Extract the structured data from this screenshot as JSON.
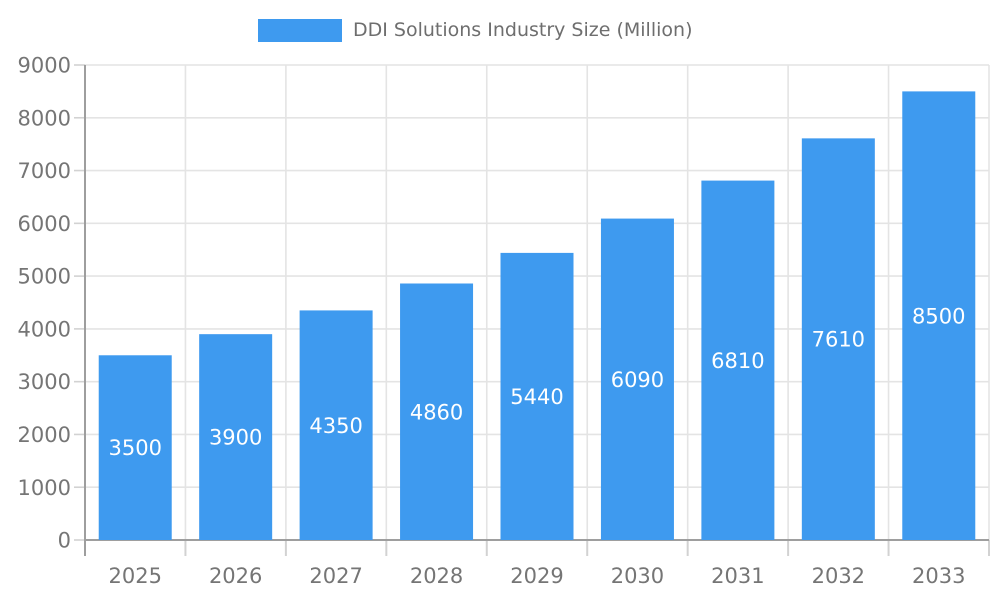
{
  "chart_data": {
    "type": "bar",
    "title": "DDI Solutions Industry Size (Million)",
    "legend": {
      "label": "DDI Solutions Industry Size (Million)",
      "position": "top"
    },
    "categories": [
      "2025",
      "2026",
      "2027",
      "2028",
      "2029",
      "2030",
      "2031",
      "2032",
      "2033"
    ],
    "series": [
      {
        "name": "DDI Solutions Industry Size (Million)",
        "values": [
          3500,
          3900,
          4350,
          4860,
          5440,
          6090,
          6810,
          7610,
          8500
        ]
      }
    ],
    "bar_labels": [
      "3500",
      "3900",
      "4350",
      "4860",
      "5440",
      "6090",
      "6810",
      "7610",
      "8500"
    ],
    "xlabel": "",
    "ylabel": "",
    "ylim": [
      0,
      9000
    ],
    "ytick_step": 1000,
    "ytick_labels": [
      "0",
      "1000",
      "2000",
      "3000",
      "4000",
      "5000",
      "6000",
      "7000",
      "8000",
      "9000"
    ],
    "grid": true,
    "colors": {
      "bar": "#3E9AEF",
      "bar_label_text": "#FFFFFF",
      "axis_text": "#757575",
      "legend_text": "#6E6E6E",
      "gridline": "#E4E4E4",
      "tick": "#D2D2D2",
      "axis_line": "#9E9E9E",
      "background": "#FFFFFF"
    }
  }
}
